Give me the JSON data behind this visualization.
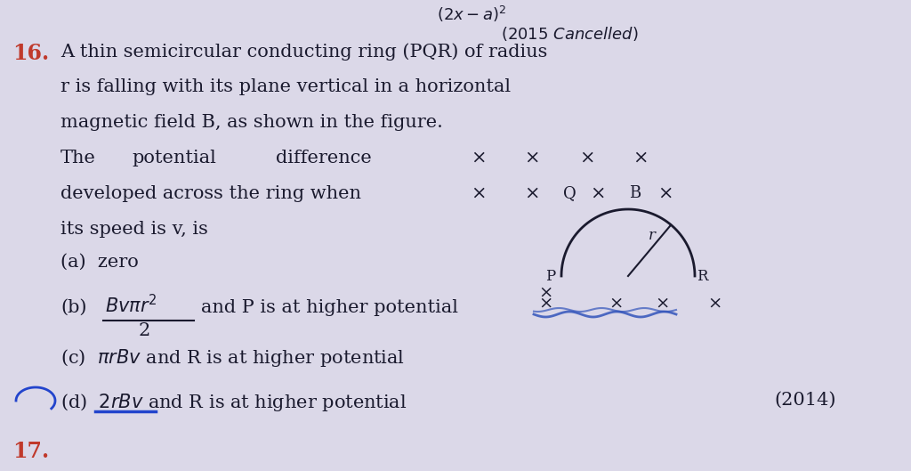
{
  "bg_color": "#dbd8e8",
  "text_color": "#1a1a2e",
  "qnum_color": "#c0392b",
  "blue_color": "#2244cc",
  "fs_main": 15,
  "fs_title": 13.5,
  "fs_small": 13,
  "title_formula": "(2x - a)^2",
  "cancelled": "(2015 Cancelled)",
  "q_num": "16.",
  "line1": "A thin semicircular conducting ring (PQR) of radius",
  "line2": "r is falling with its plane vertical in a horizontal",
  "line3": "magnetic field B, as shown in the figure.",
  "line4a": "The",
  "line4b": "potential",
  "line4c": "difference",
  "line5a": "developed across the ring when",
  "line6": "its speed is v, is",
  "opt_a": "(a)  zero",
  "opt_b_label": "(b)",
  "opt_b_num": "Bvπr²",
  "opt_b_den": "2",
  "opt_b_rest": "and P is at higher potential",
  "opt_c": "(c)  πrBv and R is at higher potential",
  "opt_d": "(d)  2rBv and R is at higher potential",
  "year": "(2014)",
  "q17": "17."
}
